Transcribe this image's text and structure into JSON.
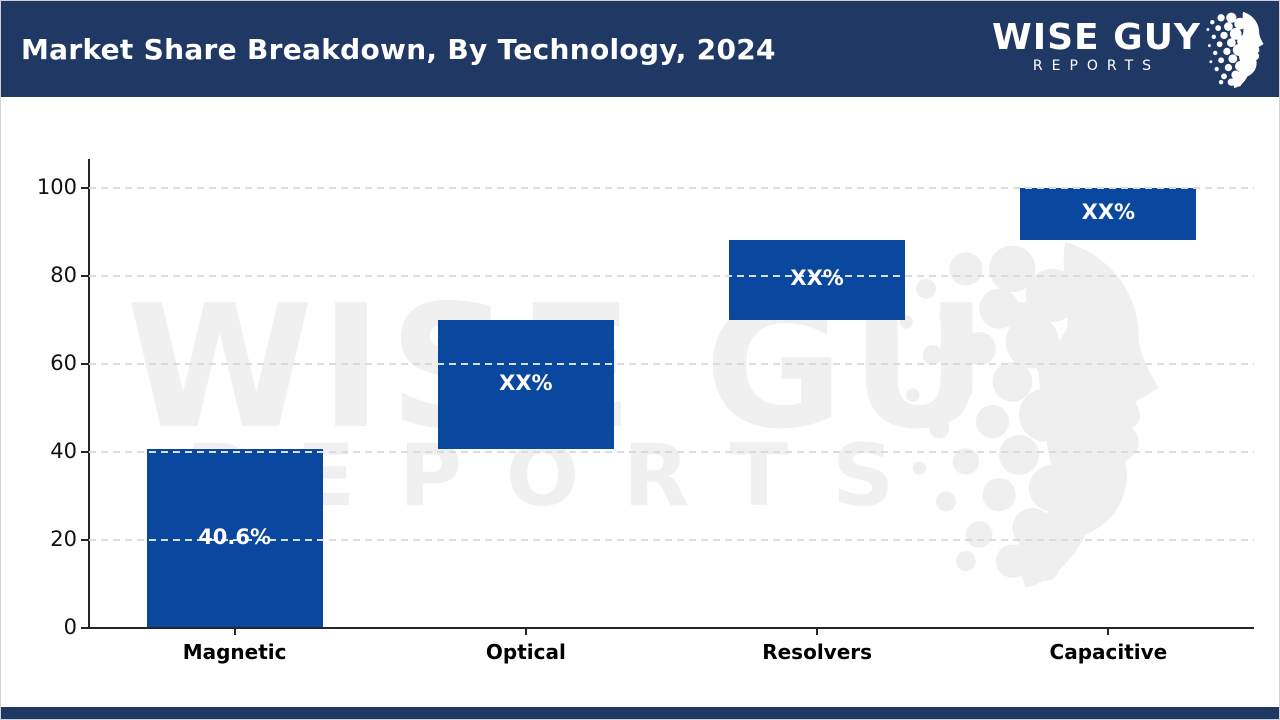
{
  "header": {
    "title": "Market Share Breakdown, By Technology, 2024",
    "background": "#203864",
    "logo": {
      "line1": "WISE GUY",
      "line2": "REPORTS"
    }
  },
  "watermark": {
    "line1": "WISE GUY",
    "line2": "REPORTS"
  },
  "chart_data": {
    "type": "bar",
    "variant": "waterfall",
    "categories": [
      "Magnetic",
      "Optical",
      "Resolvers",
      "Capacitive"
    ],
    "segments": [
      {
        "category": "Magnetic",
        "start": 0,
        "end": 40.6,
        "label": "40.6%"
      },
      {
        "category": "Optical",
        "start": 40.6,
        "end": 70.0,
        "label": "XX%"
      },
      {
        "category": "Resolvers",
        "start": 70.0,
        "end": 88.2,
        "label": "XX%"
      },
      {
        "category": "Capacitive",
        "start": 88.2,
        "end": 100.0,
        "label": "XX%"
      }
    ],
    "ylim": [
      0,
      100
    ],
    "yticks": [
      0,
      20,
      40,
      60,
      80,
      100
    ],
    "grid": true,
    "grid_style": "dashed",
    "legend": "none",
    "bar_color": "#0a479e",
    "value_label_color": "#ffffff"
  },
  "footer": {
    "background": "#203864"
  }
}
